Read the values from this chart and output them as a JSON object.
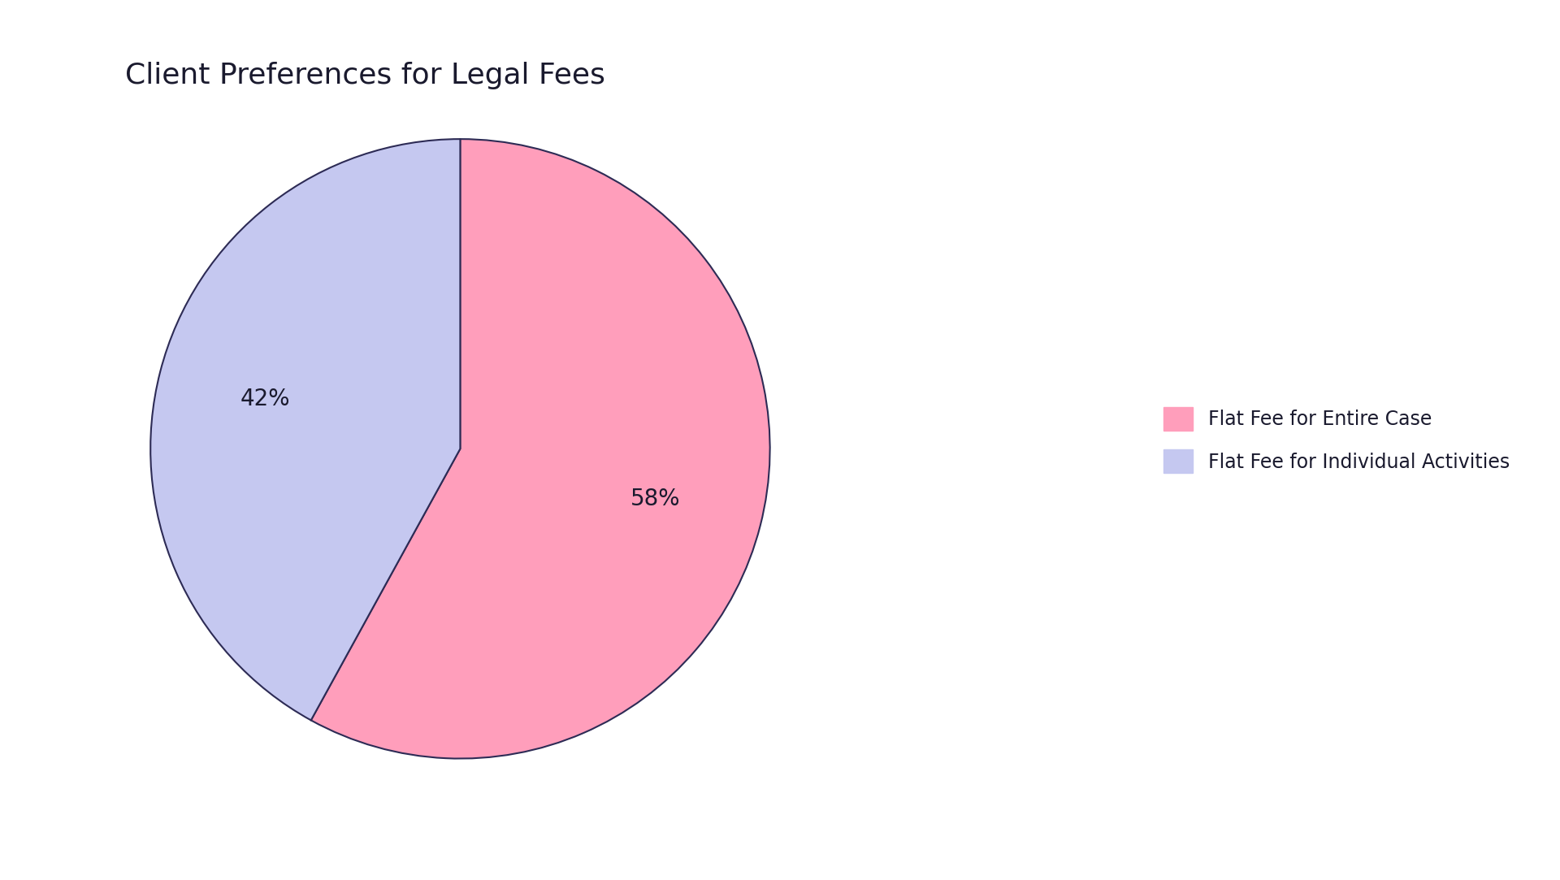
{
  "title": "Client Preferences for Legal Fees",
  "slices": [
    58,
    42
  ],
  "labels": [
    "Flat Fee for Entire Case",
    "Flat Fee for Individual Activities"
  ],
  "colors": [
    "#FF9EBB",
    "#C5C8F0"
  ],
  "edge_color": "#2D2B55",
  "edge_width": 1.5,
  "startangle": 90,
  "background_color": "#ffffff",
  "title_fontsize": 26,
  "title_color": "#1a1a2e",
  "pct_fontsize": 20,
  "legend_fontsize": 17
}
